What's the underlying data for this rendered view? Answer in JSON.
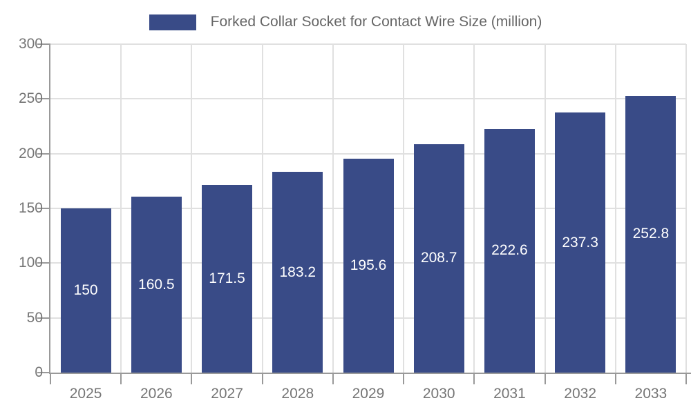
{
  "chart_data": {
    "type": "bar",
    "title": "Forked Collar Socket for Contact Wire Size (million)",
    "categories": [
      "2025",
      "2026",
      "2027",
      "2028",
      "2029",
      "2030",
      "2031",
      "2032",
      "2033"
    ],
    "values": [
      150,
      160.5,
      171.5,
      183.2,
      195.6,
      208.7,
      222.6,
      237.3,
      252.8
    ],
    "value_labels": [
      "150",
      "160.5",
      "171.5",
      "183.2",
      "195.6",
      "208.7",
      "222.6",
      "237.3",
      "252.8"
    ],
    "xlabel": "",
    "ylabel": "",
    "ylim": [
      0,
      300
    ],
    "yticks": [
      0,
      50,
      100,
      150,
      200,
      250,
      300
    ],
    "grid": true,
    "legend_position": "top",
    "colors": {
      "bar": "#394B87",
      "grid": "#e0e0e0",
      "axis": "#999999",
      "tick_label": "#757575",
      "legend_text": "#666666",
      "value_label": "#ffffff",
      "background": "#ffffff"
    }
  }
}
